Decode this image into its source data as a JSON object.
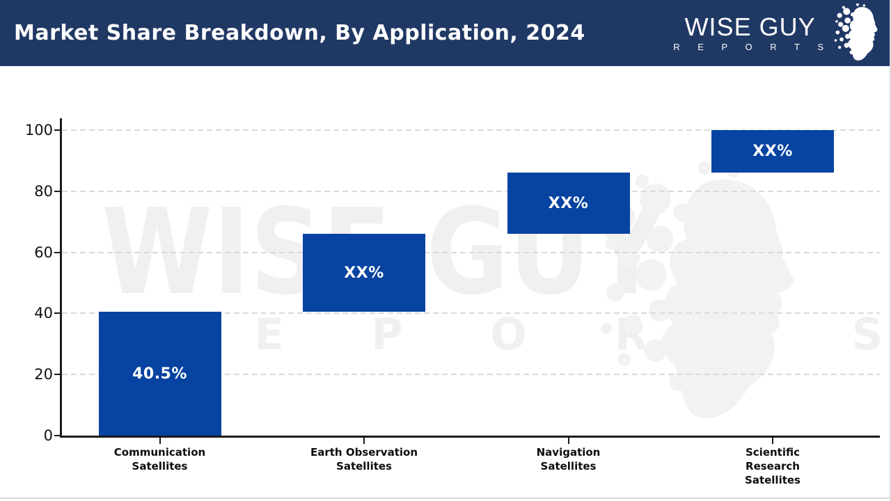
{
  "header": {
    "title": "Market Share Breakdown, By Application, 2024",
    "logo": {
      "line1": "WISE GUY",
      "line2": "R E P O R T S"
    }
  },
  "watermark": {
    "line1": "WISE GUY",
    "line2": "R E P O R T S"
  },
  "chart_data": {
    "type": "bar",
    "variant": "floating-waterfall",
    "title": "Market Share Breakdown, By Application, 2024",
    "categories": [
      "Communication\nSatellites",
      "Earth Observation\nSatellites",
      "Navigation\nSatellites",
      "Scientific\nResearch\nSatellites"
    ],
    "bars": [
      {
        "category": "Communication Satellites",
        "start": 0,
        "end": 40.5,
        "label": "40.5%",
        "value": 40.5
      },
      {
        "category": "Earth Observation Satellites",
        "start": 40.5,
        "end": 66,
        "label": "XX%",
        "value": null
      },
      {
        "category": "Navigation Satellites",
        "start": 66,
        "end": 86,
        "label": "XX%",
        "value": null
      },
      {
        "category": "Scientific Research Satellites",
        "start": 86,
        "end": 100,
        "label": "XX%",
        "value": null
      }
    ],
    "xlabel": "",
    "ylabel": "",
    "ylim": [
      0,
      105
    ],
    "yticks": [
      "0",
      "20",
      "40",
      "60",
      "80",
      "100"
    ],
    "legend": "none",
    "grid": "horizontal-dashed",
    "colors": {
      "bar": "#0743A0",
      "bar_label": "#ffffff",
      "header_bg": "#203864",
      "header_text": "#ffffff",
      "grid": "#d9d9d9",
      "axis": "#1a1a1a",
      "tick_text": "#111111",
      "watermark": "#f0f0f0"
    }
  }
}
